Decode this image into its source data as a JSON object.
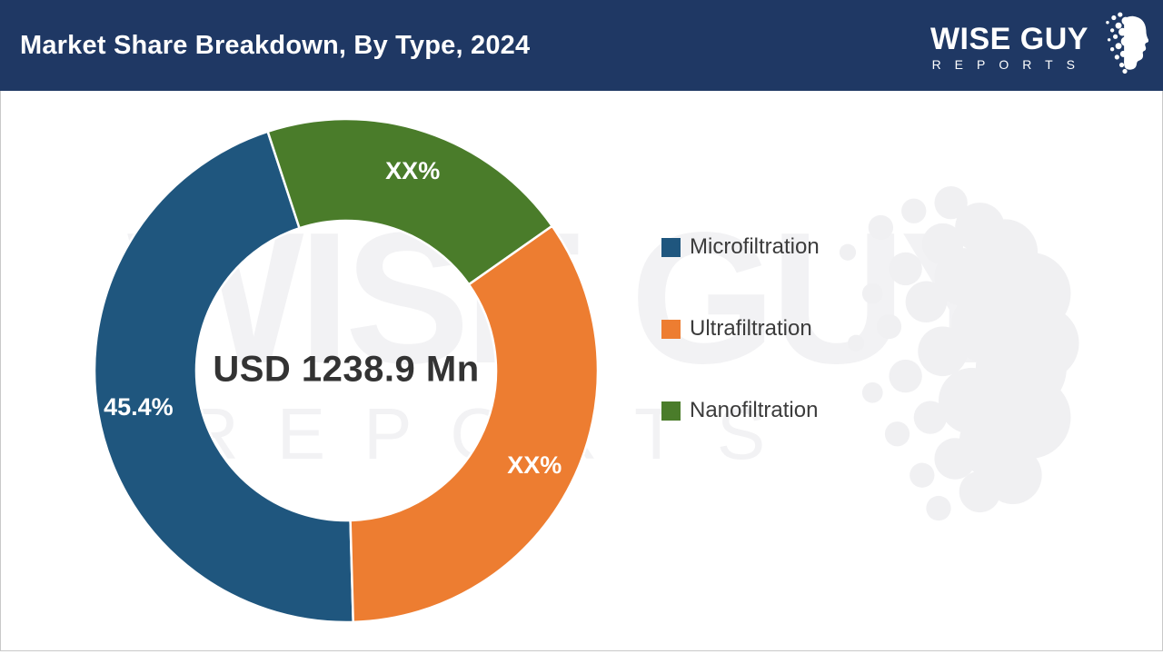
{
  "header": {
    "title": "Market Share Breakdown, By Type, 2024",
    "bg_color": "#1f3864",
    "logo_title": "WISE GUY",
    "logo_subtitle": "REPORTS"
  },
  "watermark": {
    "line1": "WISE GUY",
    "line2": "REPORTS"
  },
  "chart_data": {
    "type": "pie",
    "subtype": "donut",
    "title": "Market Share Breakdown, By Type, 2024",
    "center_label": "USD 1238.9 Mn",
    "series": [
      {
        "name": "Microfiltration",
        "share_pct": 45.4,
        "label": "45.4%",
        "color": "#1f567e"
      },
      {
        "name": "Ultrafiltration",
        "share_pct": 34.3,
        "label": "XX%",
        "color": "#ed7d31"
      },
      {
        "name": "Nanofiltration",
        "share_pct": 20.3,
        "label": "XX%",
        "color": "#4a7c2a"
      }
    ],
    "legend_position": "right",
    "clockwise_order": [
      "Microfiltration",
      "Nanofiltration",
      "Ultrafiltration"
    ],
    "start_angle_deg_from_12_clockwise": 178.4,
    "donut_hole_ratio": 0.6
  },
  "legend": {
    "items": [
      {
        "label": "Microfiltration",
        "color": "#1f567e"
      },
      {
        "label": "Ultrafiltration",
        "color": "#ed7d31"
      },
      {
        "label": "Nanofiltration",
        "color": "#4a7c2a"
      }
    ]
  },
  "colors": {
    "header_bg": "#1f3864",
    "center_text": "#333333",
    "legend_text": "#3b3b3b",
    "slice_label_text": "#ffffff",
    "watermark": "#f2f2f4",
    "border_line": "#c9c9c9"
  }
}
